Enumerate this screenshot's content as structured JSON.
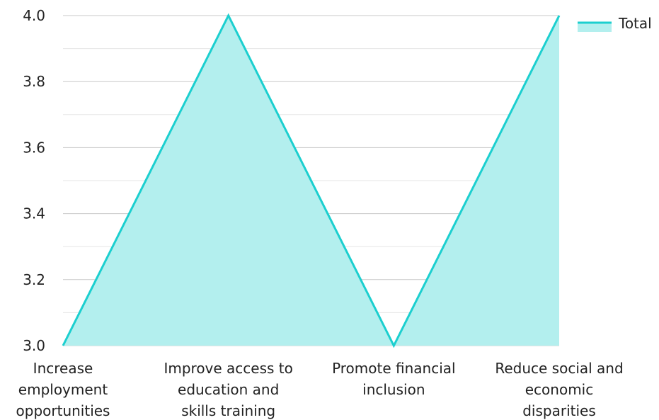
{
  "chart_data": {
    "type": "area",
    "categories": [
      [
        "Increase",
        "employment",
        "opportunities"
      ],
      [
        "Improve access to",
        "education and",
        "skills training"
      ],
      [
        "Promote financial",
        "inclusion"
      ],
      [
        "Reduce social and",
        "economic",
        "disparities"
      ]
    ],
    "series": [
      {
        "name": "Total",
        "values": [
          3.0,
          4.0,
          3.0,
          4.0
        ]
      }
    ],
    "ylim": [
      3.0,
      4.0
    ],
    "yticks": [
      "3.0",
      "3.2",
      "3.4",
      "3.6",
      "3.8",
      "4.0"
    ],
    "ytick_values": [
      3.0,
      3.2,
      3.4,
      3.6,
      3.8,
      4.0
    ],
    "minor_gridlines": true,
    "grid": true,
    "legend_position": "top-right",
    "title": "",
    "xlabel": "",
    "ylabel": "",
    "colors": {
      "line": "#1ccfcf",
      "fill": "#b3efee",
      "major_grid": "#c8c8c8",
      "minor_grid": "#e6e6e6"
    }
  }
}
